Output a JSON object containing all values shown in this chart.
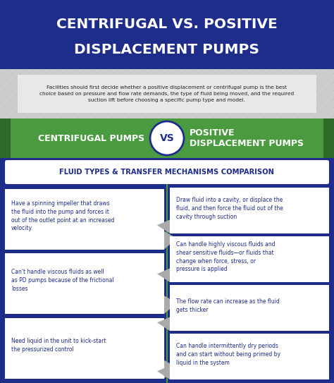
{
  "title_line1": "CENTRIFUGAL VS. POSITIVE",
  "title_line2": "DISPLACEMENT PUMPS",
  "title_bg": "#1e2d8a",
  "title_text_color": "#ffffff",
  "subtitle_text": "Facilities should first decide whether a positive displacement or centrifugal pump is the best\nchoice based on pressure and flow rate demands, the type of fluid being moved, and the required\nsuction lift before choosing a specific pump type and model.",
  "subtitle_bg": "#d0d0d0",
  "subtitle_hatch_color": "#c0c0c0",
  "subtitle_text_color": "#222222",
  "left_label": "CENTRIFUGAL PUMPS",
  "right_label": "POSITIVE\nDISPLACEMENT PUMPS",
  "vs_text": "VS",
  "vs_bg": "#ffffff",
  "vs_border_color": "#1e2d8a",
  "vs_text_color": "#1e2d8a",
  "banner_bg": "#4a9b3f",
  "banner_tab_color": "#2e6b28",
  "banner_text_color": "#ffffff",
  "section_label": "FLUID TYPES & TRANSFER MECHANISMS COMPARISON",
  "section_label_bg": "#ffffff",
  "section_label_text_color": "#1e2d8a",
  "section_label_border": "#1e2d8a",
  "main_bg": "#1e2d8a",
  "card_bg": "#ffffff",
  "card_text_color": "#1e2d8a",
  "left_items": [
    "Have a spinning impeller that draws\nthe fluid into the pump and forces it\nout of the outlet point at an increased\nvelocity.",
    "Can't handle viscous fluids as well\nas PD pumps because of the frictional\nlosses",
    "Need liquid in the unit to kick-start\nthe pressurized control"
  ],
  "right_items": [
    "Draw fluid into a cavity, or displace the\nfluid, and then force the fluid out of the\ncavity through suction",
    "Can handle highly viscous fluids and\nshear sensitive fluids—or fluids that\nchange when force, stress, or\npressure is applied",
    "The flow rate can increase as the fluid\ngets thicker",
    "Can handle intermittently dry periods\nand can start without being primed by\nliquid in the system"
  ],
  "arrow_color": "#aaaaaa",
  "divider_color": "#4a9b3f",
  "fig_w": 4.74,
  "fig_h": 5.43,
  "dpi": 100
}
